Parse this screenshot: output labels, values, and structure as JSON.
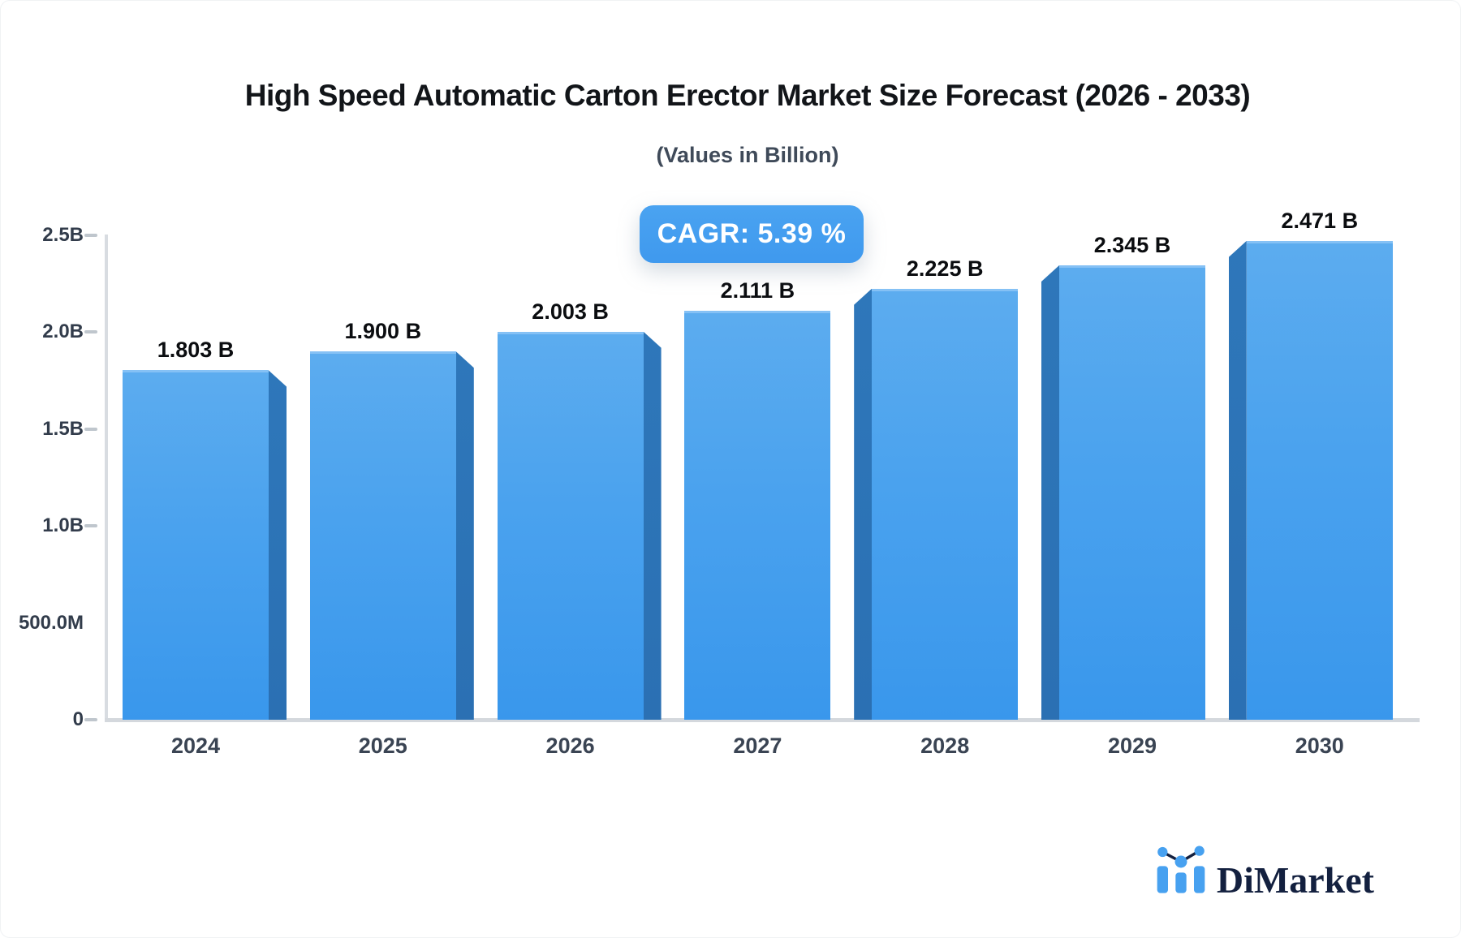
{
  "header": {
    "title": "High Speed Automatic Carton Erector Market Size Forecast (2026 - 2033)",
    "subtitle": "(Values in Billion)"
  },
  "badge": {
    "label": "CAGR: 5.39 %",
    "cagr_percent": 5.39
  },
  "chart_data": {
    "type": "bar",
    "title": "High Speed Automatic Carton Erector Market Size Forecast (2026 - 2033)",
    "subtitle": "(Values in Billion)",
    "categories": [
      "2024",
      "2025",
      "2026",
      "2027",
      "2028",
      "2029",
      "2030"
    ],
    "values": [
      1.803,
      1.9,
      2.003,
      2.111,
      2.225,
      2.345,
      2.471
    ],
    "value_labels": [
      "1.803 B",
      "1.900 B",
      "2.003 B",
      "2.111 B",
      "2.225 B",
      "2.345 B",
      "2.471 B"
    ],
    "unit": "Billion",
    "ylim": [
      0,
      2.5
    ],
    "y_ticks": [
      {
        "label": "0",
        "value": 0.0,
        "tick_mark": true
      },
      {
        "label": "500.0M",
        "value": 0.5,
        "tick_mark": false
      },
      {
        "label": "1.0B",
        "value": 1.0,
        "tick_mark": true
      },
      {
        "label": "1.5B",
        "value": 1.5,
        "tick_mark": true
      },
      {
        "label": "2.0B",
        "value": 2.0,
        "tick_mark": true
      },
      {
        "label": "2.5B",
        "value": 2.5,
        "tick_mark": true
      }
    ],
    "grid": false,
    "legend": false,
    "bar_style": "3d-extruded",
    "annotation": "CAGR: 5.39 %"
  },
  "colors": {
    "bar_front_top": "#5cacef",
    "bar_front_bottom": "#3997ec",
    "bar_side": "#2b70b3",
    "badge_bg": "#429ced",
    "badge_text": "#ffffff",
    "axis_line": "#d8dce1",
    "title_text": "#121519",
    "subtitle_text": "#3f4a59",
    "tick_text": "#323c4b",
    "logo_navy": "#13203f",
    "logo_blue": "#47a1f0"
  },
  "logo": {
    "brand": "DiMarket",
    "icon": "bar-chart-trend-icon"
  }
}
